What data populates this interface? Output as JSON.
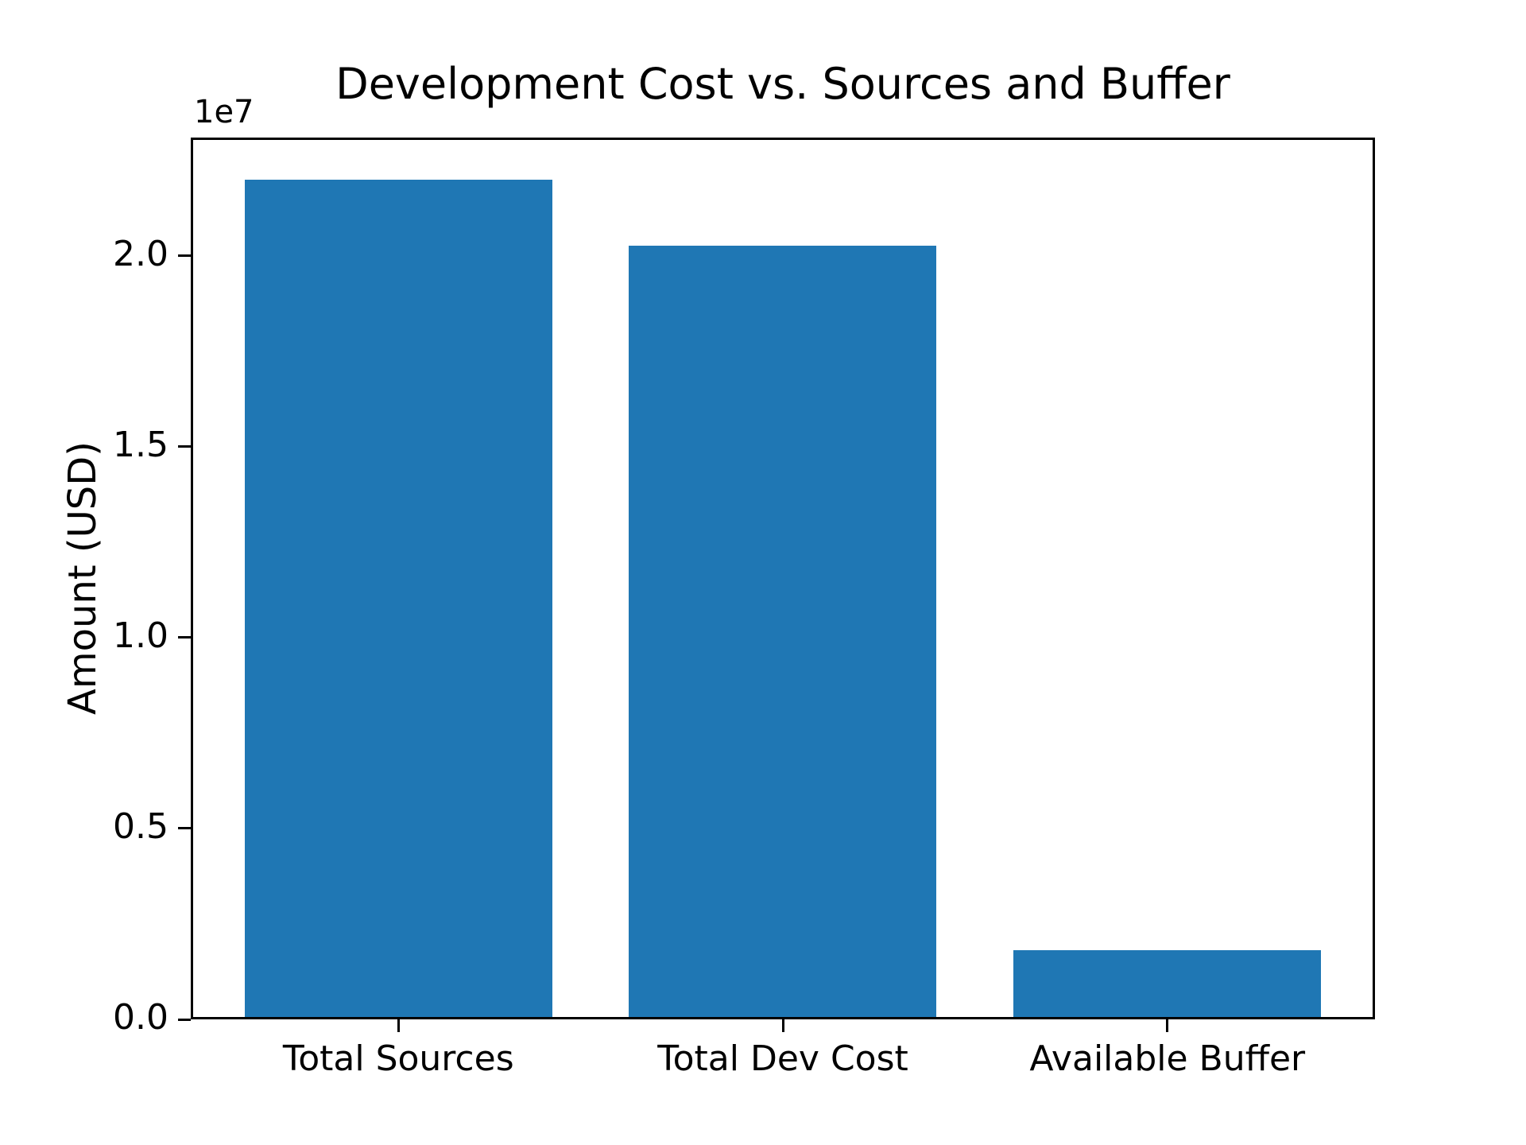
{
  "chart_data": {
    "type": "bar",
    "title": "Development Cost vs. Sources and Buffer",
    "categories": [
      "Total Sources",
      "Total Dev Cost",
      "Available Buffer"
    ],
    "values": [
      22000000,
      20250000,
      1750000
    ],
    "xlabel": "",
    "ylabel": "Amount (USD)",
    "ylim": [
      0,
      23100000
    ],
    "y_ticks": [
      0,
      5000000,
      10000000,
      15000000,
      20000000
    ],
    "y_tick_labels": [
      "0.0",
      "0.5",
      "1.0",
      "1.5",
      "2.0"
    ],
    "y_offset_text": "1e7",
    "bar_color": "#1f77b4",
    "axis_color": "#000000",
    "background_color": "#ffffff",
    "grid": false,
    "legend": null
  }
}
